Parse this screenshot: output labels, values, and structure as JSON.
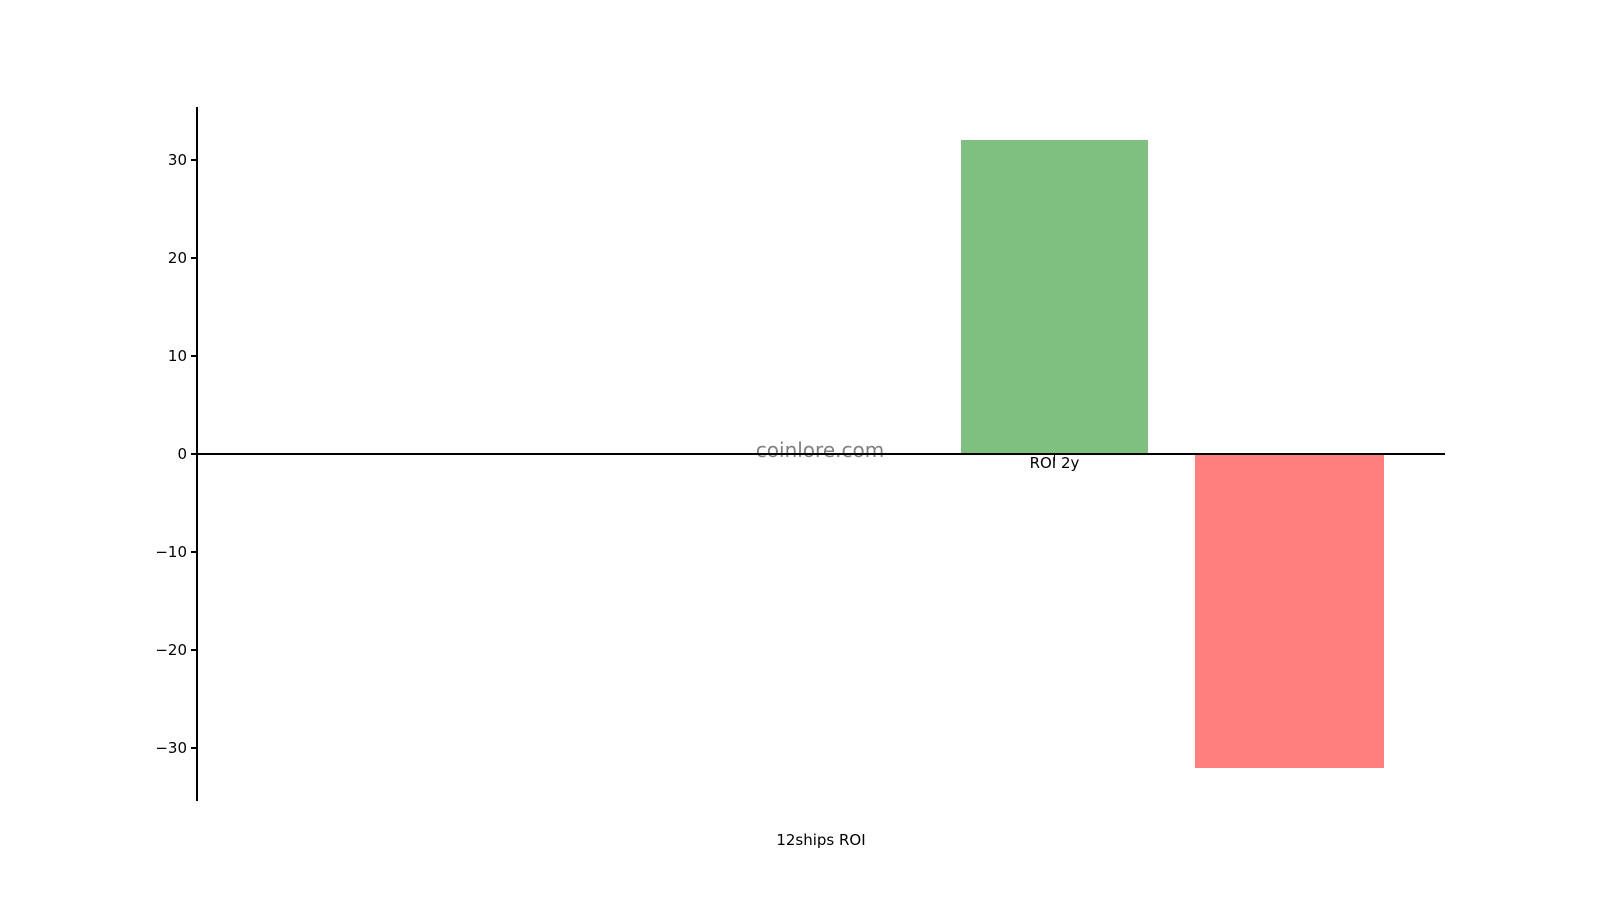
{
  "watermark": {
    "text": "coinlore.com",
    "color": "#808080"
  },
  "chart_data": {
    "type": "bar",
    "title": "",
    "xlabel": "12ships ROI",
    "ylabel": "",
    "categories": [
      "ROI 2y",
      ""
    ],
    "values": [
      32,
      -32
    ],
    "bar_colors": [
      "#7fbf7f",
      "#ff7f7f"
    ],
    "positive_color": "#7fbf7f",
    "negative_color": "#ff7f7f",
    "ytick_values": [
      30,
      20,
      10,
      0,
      -10,
      -20,
      -30
    ],
    "ytick_labels": [
      "30",
      "20",
      "10",
      "0",
      "−10",
      "−20",
      "−30"
    ],
    "ylim": [
      -35.5,
      35.5
    ],
    "grid": false,
    "legend": "none",
    "axis_color": "#000000"
  }
}
